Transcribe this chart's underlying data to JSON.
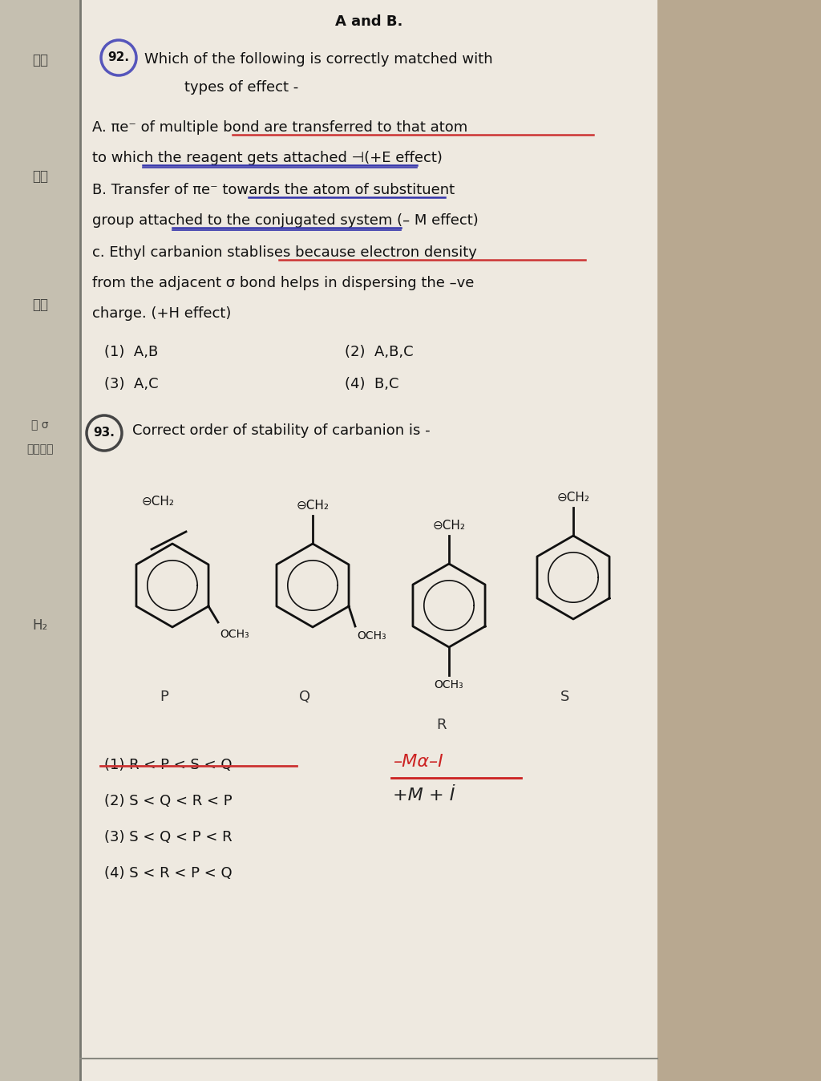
{
  "bg_color": "#d8d3c8",
  "page_bg": "#eee9e0",
  "margin_bg": "#c5bfb0",
  "header": "A and B.",
  "q92_circle_color": "#5555bb",
  "q93_circle_color": "#444444",
  "text_color": "#111111",
  "red_color": "#cc3333",
  "blue_color": "#3333aa",
  "annot_red": "#cc2222",
  "annot_dark": "#222222",
  "font_size_main": 13,
  "font_size_small": 11,
  "q92_lines": [
    "Which of the following is correctly matched with",
    "types of effect -",
    "A. πe⁻ of multiple bond are transferred to that atom",
    "to which the reagent gets attached ⊣(+E effect)",
    "B. Transfer of πe⁻ towards the atom of substituent",
    "group attached to the conjugated system (– M effect)",
    "c. Ethyl carbanion stablises because electron density",
    "from the adjacent σ bond helps in dispersing the –ve",
    "charge. (+H effect)"
  ],
  "q92_opts": [
    "(1)  A,B",
    "(2)  A,B,C",
    "(3)  A,C",
    "(4)  B,C"
  ],
  "q93_text": "Correct order of stability of carbanion is -",
  "struct_labels": [
    "P",
    "Q",
    "R",
    "S"
  ],
  "q93_opts": [
    "(1) R < P < S < Q",
    "(2) S < Q < R < P",
    "(3) S < Q < P < R",
    "(4) S < R < P < Q"
  ],
  "annot1": "–Mα–I",
  "annot2": "+M + İ"
}
